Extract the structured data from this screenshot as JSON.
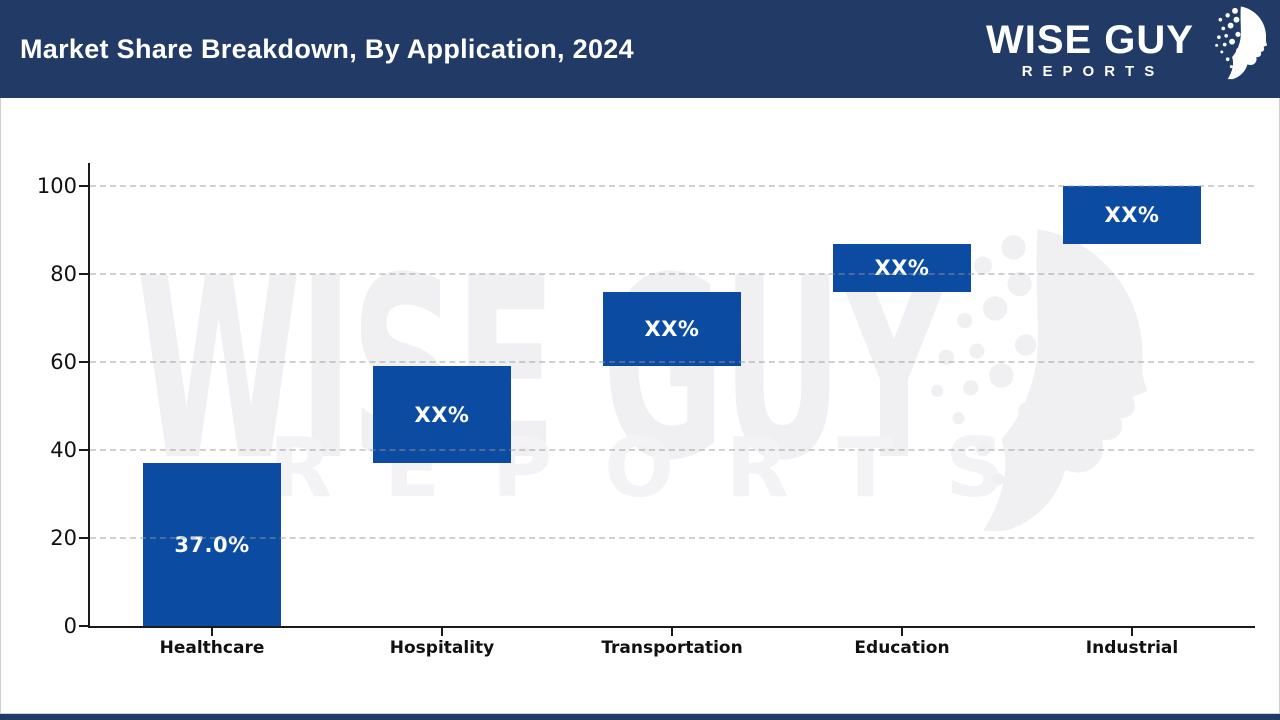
{
  "header": {
    "title": "Market Share Breakdown, By Application, 2024",
    "logo": {
      "wordmark": "WISE GUY",
      "subtext": "REPORTS"
    }
  },
  "watermark": {
    "wordmark": "WISE GUY",
    "subtext": "REPORTS"
  },
  "chart_data": {
    "type": "bar",
    "subtype": "waterfall",
    "title": "Market Share Breakdown, By Application, 2024",
    "xlabel": "",
    "ylabel": "",
    "ylim": [
      0,
      100
    ],
    "yticks": [
      0,
      20,
      40,
      60,
      80,
      100
    ],
    "grid": "horizontal-dashed",
    "legend": "none",
    "categories": [
      "Healthcare",
      "Hospitality",
      "Transportation",
      "Education",
      "Industrial"
    ],
    "segments": [
      {
        "category": "Healthcare",
        "start": 0,
        "end": 37,
        "value_label": "37.0%"
      },
      {
        "category": "Hospitality",
        "start": 37,
        "end": 59,
        "value_label": "XX%"
      },
      {
        "category": "Transportation",
        "start": 59,
        "end": 75.9,
        "value_label": "XX%"
      },
      {
        "category": "Education",
        "start": 75.9,
        "end": 86.8,
        "value_label": "XX%"
      },
      {
        "category": "Industrial",
        "start": 86.8,
        "end": 100,
        "value_label": "XX%"
      }
    ]
  },
  "colors": {
    "header_bg": "#213a66",
    "bar": "#0b4ba1",
    "axis": "#1a1a1a",
    "grid": "#d9d9d9",
    "bar_label": "#ffffff",
    "watermark": "#f0f0f3"
  }
}
